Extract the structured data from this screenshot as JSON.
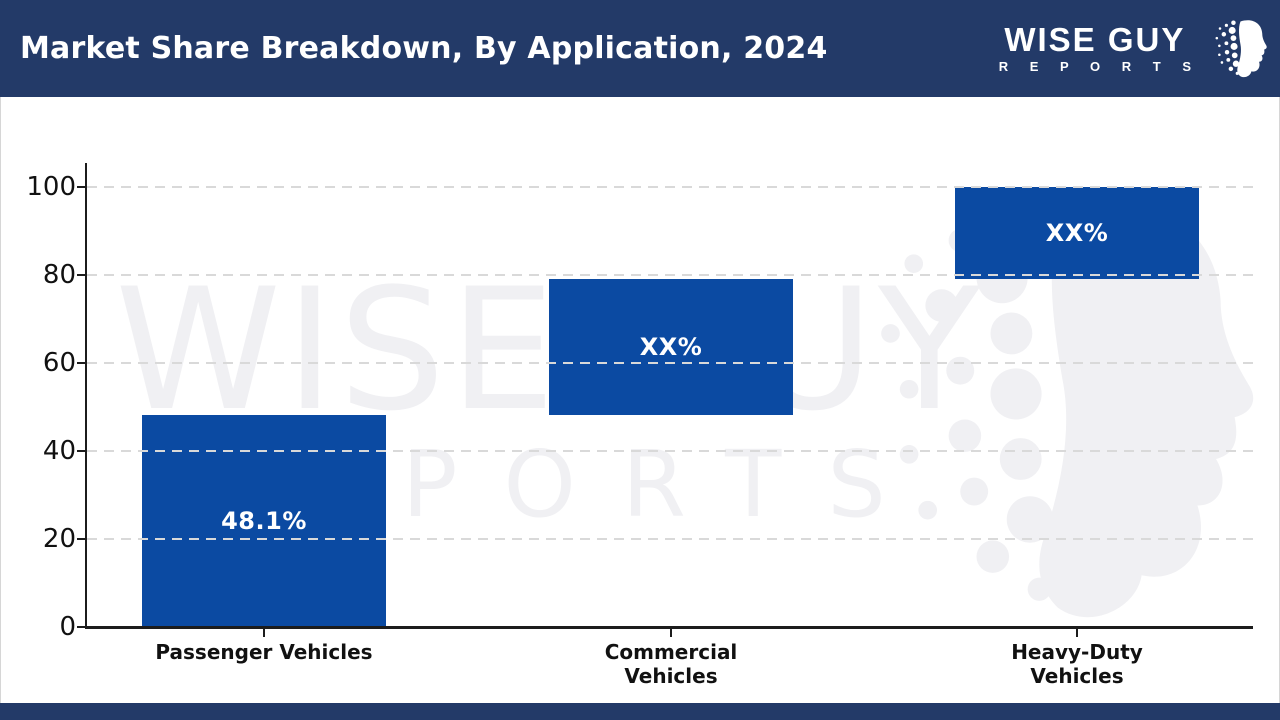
{
  "theme": {
    "navy": "#233a68",
    "bar_blue": "#0b4aa2",
    "grid": "#d9d9d9",
    "axis": "#1c1c1c",
    "watermark": "#f0f0f3",
    "label_white": "#ffffff",
    "text_dark": "#111111"
  },
  "header": {
    "title": "Market Share Breakdown, By Application, 2024",
    "logo_line1": "WISE GUY",
    "logo_line2": "R E P O R T S"
  },
  "watermark": {
    "line1": "WISE GUY",
    "line2": "REPORTS"
  },
  "chart_data": {
    "type": "bar",
    "subtype": "floating-waterfall-segments",
    "title": "Market Share Breakdown, By Application, 2024",
    "categories": [
      "Passenger Vehicles",
      "Commercial\nVehicles",
      "Heavy-Duty\nVehicles"
    ],
    "series": [
      {
        "name": "Market share (%)",
        "segments": [
          {
            "category": "Passenger Vehicles",
            "start": 0,
            "end": 48.1,
            "label": "48.1%"
          },
          {
            "category": "Commercial Vehicles",
            "start": 48.1,
            "end": 79.1,
            "label": "XX%"
          },
          {
            "category": "Heavy-Duty Vehicles",
            "start": 79.1,
            "end": 100,
            "label": "XX%"
          }
        ]
      }
    ],
    "xlabel": "",
    "ylabel": "",
    "yticks": [
      0,
      20,
      40,
      60,
      80,
      100
    ],
    "ylim": [
      0,
      105
    ],
    "grid": "horizontal-dashed",
    "legend": "none",
    "bar_value_label_position": "inside-center"
  }
}
